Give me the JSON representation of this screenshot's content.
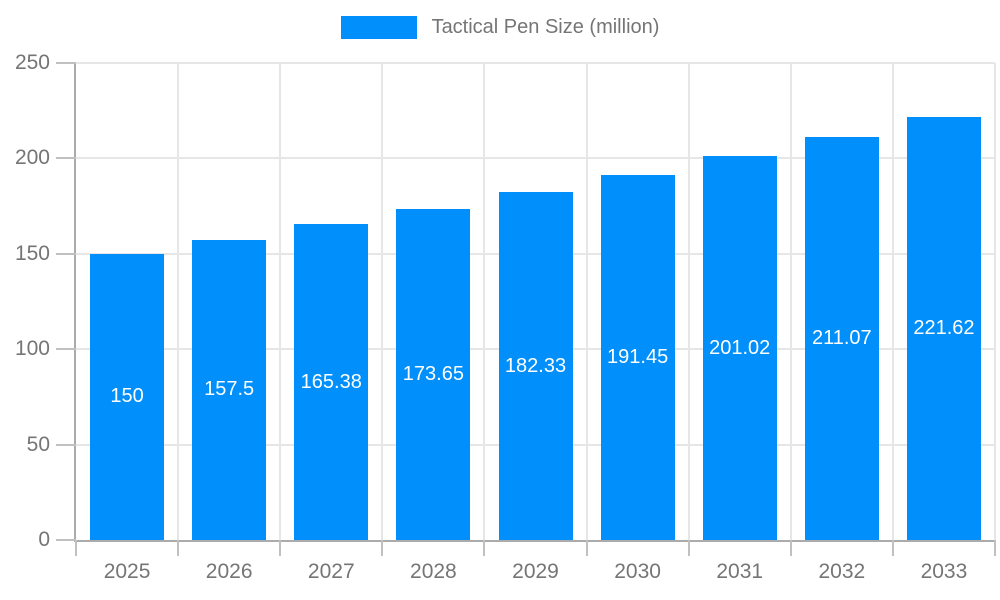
{
  "legend": {
    "series_label": "Tactical Pen Size (million)"
  },
  "chart_data": {
    "type": "bar",
    "title": "Tactical Pen Size (million)",
    "categories": [
      "2025",
      "2026",
      "2027",
      "2028",
      "2029",
      "2030",
      "2031",
      "2032",
      "2033"
    ],
    "values": [
      150,
      157.5,
      165.38,
      173.65,
      182.33,
      191.45,
      201.02,
      211.07,
      221.62
    ],
    "value_labels": [
      "150",
      "157.5",
      "165.38",
      "173.65",
      "182.33",
      "191.45",
      "201.02",
      "211.07",
      "221.62"
    ],
    "xlabel": "",
    "ylabel": "",
    "ylim": [
      0,
      250
    ],
    "yticks": [
      0,
      50,
      100,
      150,
      200,
      250
    ],
    "grid": "on",
    "legend_position": "top-center",
    "bar_color": "#008ffb",
    "label_color": "#757575",
    "grid_color": "#e6e6e6",
    "axis_color": "#ababab",
    "bar_label_color": "#ffffff"
  }
}
